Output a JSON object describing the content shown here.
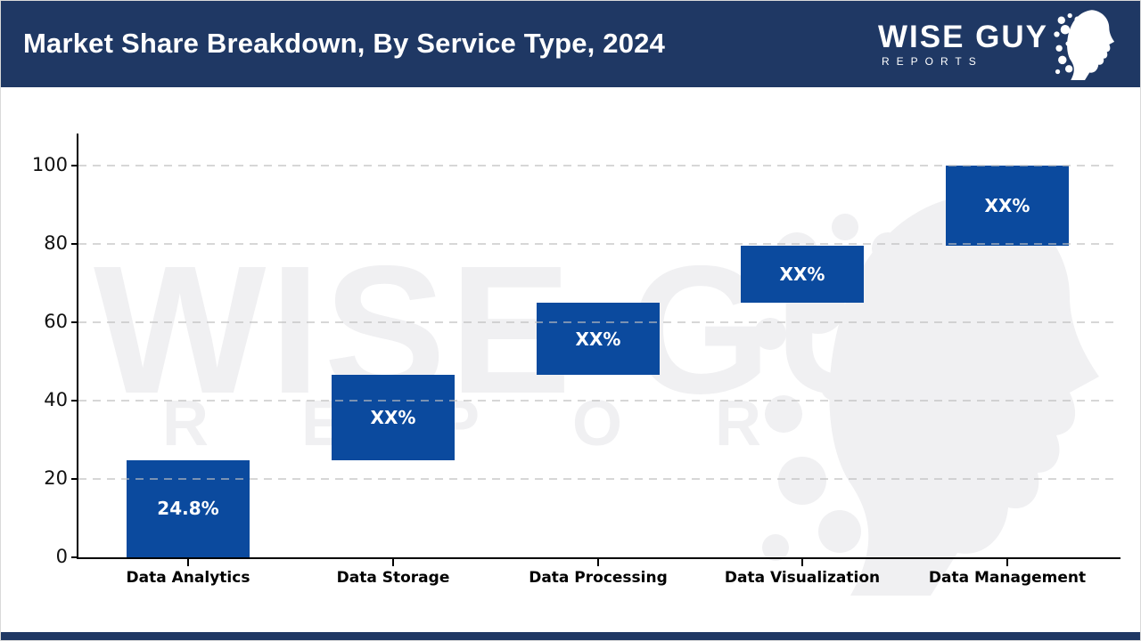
{
  "header": {
    "title": "Market Share Breakdown, By Service Type, 2024",
    "logo": {
      "line1": "WISE GUY",
      "line2": "REPORTS"
    }
  },
  "watermark": {
    "line1": "WISE GUY",
    "line2": "REPORTS"
  },
  "chart_data": {
    "type": "bar",
    "subtype": "waterfall",
    "title": "Market Share Breakdown, By Service Type, 2024",
    "categories": [
      "Data Analytics",
      "Data Storage",
      "Data Processing",
      "Data Visualization",
      "Data Management"
    ],
    "segments": [
      {
        "category": "Data Analytics",
        "start": 0,
        "end": 24.8,
        "label": "24.8%"
      },
      {
        "category": "Data Storage",
        "start": 24.8,
        "end": 46.5,
        "label": "XX%"
      },
      {
        "category": "Data Processing",
        "start": 46.5,
        "end": 65,
        "label": "XX%"
      },
      {
        "category": "Data Visualization",
        "start": 65,
        "end": 79.5,
        "label": "XX%"
      },
      {
        "category": "Data Management",
        "start": 79.5,
        "end": 100,
        "label": "XX%"
      }
    ],
    "yticks": [
      0,
      20,
      40,
      60,
      80,
      100
    ],
    "ylim": [
      0,
      105
    ],
    "xlabel": "",
    "ylabel": "",
    "grid": "horizontal-dashed",
    "legend": "none",
    "bar_color": "#0b4a9e",
    "bar_label_color": "#ffffff",
    "header_color": "#1f3864",
    "gridline_color": "#d9d9d9"
  }
}
